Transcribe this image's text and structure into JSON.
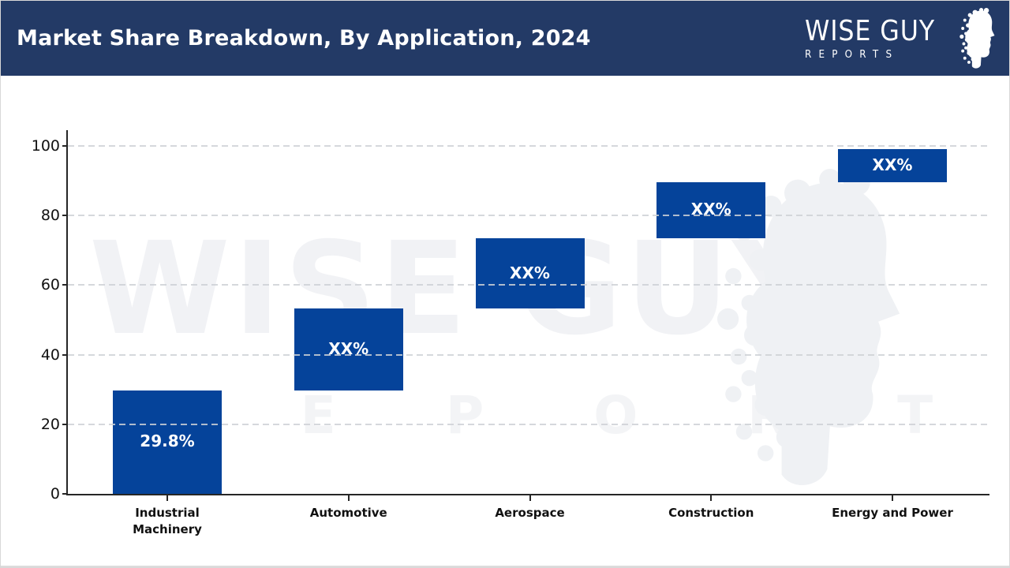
{
  "header": {
    "title": "Market Share Breakdown, By Application, 2024",
    "logo": {
      "line1": "WISE GUY",
      "line2": "REPORTS"
    }
  },
  "watermark": {
    "line1": "WISE GUY",
    "line2": "R E P O R T S"
  },
  "colors": {
    "header_bg": "#233a66",
    "bar": "#05439a",
    "axis": "#262626",
    "grid": "#ced1d6",
    "bar_label": "#ffffff"
  },
  "chart_data": {
    "type": "bar",
    "subtype": "waterfall",
    "title": "Market Share Breakdown, By Application, 2024",
    "xlabel": "",
    "ylabel": "",
    "ylim": [
      0,
      104
    ],
    "grid": "dashed-horizontal gridlines at each y tick",
    "legend": "none",
    "categories": [
      "Industrial\nMachinery",
      "Automotive",
      "Aerospace",
      "Construction",
      "Energy and Power"
    ],
    "yticks": [
      0,
      20,
      40,
      60,
      80,
      100
    ],
    "segments": [
      {
        "category": "Industrial Machinery",
        "start": 0,
        "end": 29.8,
        "label": "29.8%"
      },
      {
        "category": "Automotive",
        "start": 29.8,
        "end": 53.2,
        "label": "XX%"
      },
      {
        "category": "Aerospace",
        "start": 53.2,
        "end": 73.5,
        "label": "XX%"
      },
      {
        "category": "Construction",
        "start": 73.5,
        "end": 89.6,
        "label": "XX%"
      },
      {
        "category": "Energy and Power",
        "start": 89.6,
        "end": 99.2,
        "label": "XX%"
      }
    ]
  }
}
